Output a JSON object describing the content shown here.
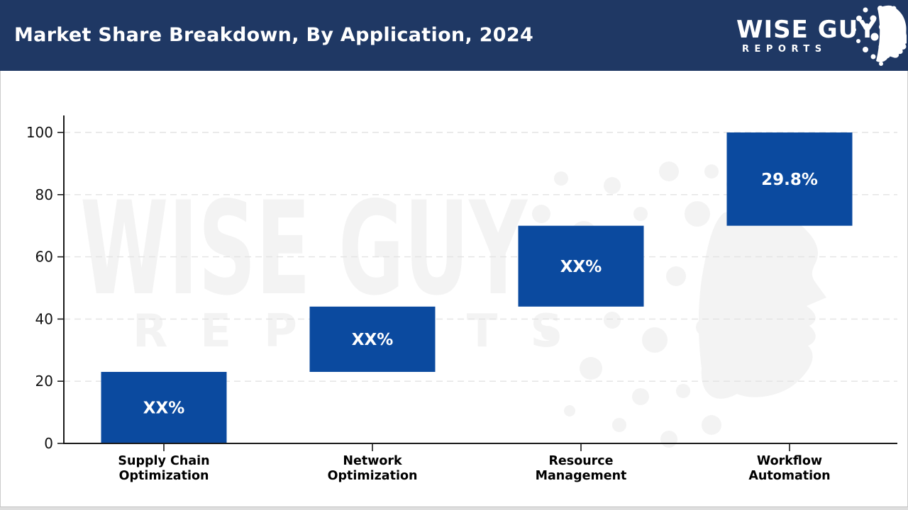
{
  "header": {
    "title": "Market Share Breakdown, By Application, 2024",
    "logo": {
      "brand": "WISE GUY",
      "sub": "REPORTS"
    }
  },
  "watermark": {
    "brand": "WISE GUY",
    "sub": "REPORTS"
  },
  "chart_data": {
    "type": "bar",
    "subtype": "floating-waterfall-segments",
    "title": "Market Share Breakdown, By Application, 2024",
    "categories": [
      [
        "Supply Chain",
        "Optimization"
      ],
      [
        "Network",
        "Optimization"
      ],
      [
        "Resource",
        "Management"
      ],
      [
        "Workflow",
        "Automation"
      ]
    ],
    "segments": [
      {
        "start": 0,
        "end": 23,
        "label": "XX%"
      },
      {
        "start": 23,
        "end": 44,
        "label": "XX%"
      },
      {
        "start": 44,
        "end": 70,
        "label": "XX%"
      },
      {
        "start": 70,
        "end": 100,
        "label": "29.8%"
      }
    ],
    "yticks": [
      0,
      20,
      40,
      60,
      80,
      100
    ],
    "ylim": [
      0,
      105
    ],
    "xlabel": "",
    "ylabel": "",
    "grid": "dashed horizontal gridlines",
    "legend": "none",
    "bar_color": "#0b4a9f",
    "bar_label_color": "#ffffff",
    "axis_color": "#1a1a1a",
    "grid_color": "#e3e3e3",
    "header_color": "#1f3864",
    "watermark_color": "#f3f3f3"
  }
}
